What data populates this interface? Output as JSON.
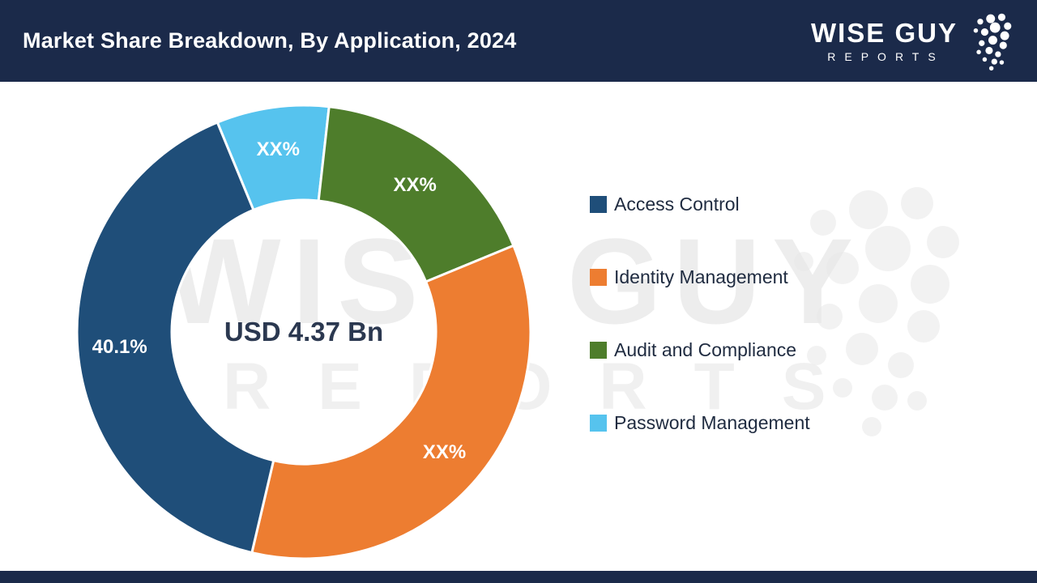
{
  "header": {
    "title": "Market Share Breakdown, By Application, 2024",
    "logo": {
      "line1": "WISE GUY",
      "line2": "REPORTS"
    }
  },
  "watermark": {
    "line1": "WISE GUY",
    "line2": "REPORTS"
  },
  "chart_data": {
    "type": "pie",
    "subtype": "donut",
    "title": "Market Share Breakdown, By Application, 2024",
    "center_label": "USD 4.37 Bn",
    "start_angle_deg": -22.4,
    "legend_position": "right",
    "segments": [
      {
        "label": "Password Management",
        "value": 8.0,
        "display": "XX%",
        "color": "#56c3ee"
      },
      {
        "label": "Audit and Compliance",
        "value": 17.0,
        "display": "XX%",
        "color": "#4e7d2b"
      },
      {
        "label": "Identity Management",
        "value": 34.9,
        "display": "XX%",
        "color": "#ed7d31"
      },
      {
        "label": "Access Control",
        "value": 40.1,
        "display": "40.1%",
        "color": "#1f4e79"
      }
    ]
  },
  "legend": {
    "items": [
      {
        "label": "Access Control",
        "color": "#1f4e79"
      },
      {
        "label": "Identity Management",
        "color": "#ed7d31"
      },
      {
        "label": "Audit and Compliance",
        "color": "#4e7d2b"
      },
      {
        "label": "Password Management",
        "color": "#56c3ee"
      }
    ]
  }
}
